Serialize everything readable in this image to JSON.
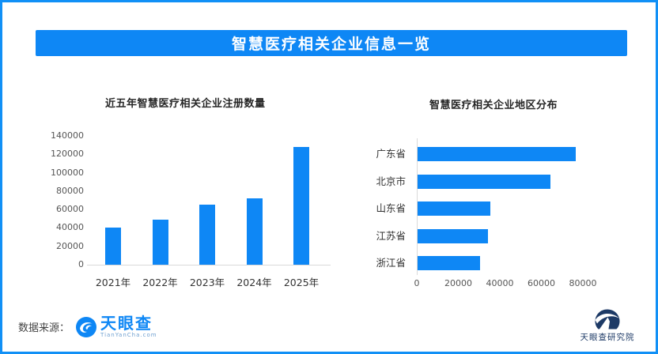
{
  "header": {
    "title": "智慧医疗相关企业信息一览"
  },
  "footer": {
    "source_label": "数据来源：",
    "tianyancha_name": "天眼查",
    "tianyancha_domain": "TianYanCha.com",
    "institute_name": "天眼查研究院"
  },
  "colors": {
    "accent_blue": "#0e87f5",
    "logo_navy": "#1d3a66",
    "axis_line": "#d9d9d9"
  },
  "chart_data": [
    {
      "type": "bar",
      "orientation": "vertical",
      "title": "近五年智慧医疗相关企业注册数量",
      "categories": [
        "2021年",
        "2022年",
        "2023年",
        "2024年",
        "2025年"
      ],
      "values": [
        40000,
        49000,
        65000,
        72000,
        128000
      ],
      "xlabel": "",
      "ylabel": "",
      "ylim": [
        0,
        140000
      ],
      "yticks": [
        0,
        20000,
        40000,
        60000,
        80000,
        100000,
        120000,
        140000
      ],
      "grid": false,
      "legend": false,
      "bar_color": "#0e87f5"
    },
    {
      "type": "bar",
      "orientation": "horizontal",
      "title": "智慧医疗相关企业地区分布",
      "categories": [
        "广东省",
        "北京市",
        "山东省",
        "江苏省",
        "浙江省"
      ],
      "values": [
        76000,
        64000,
        35000,
        34000,
        30000
      ],
      "xlabel": "",
      "ylabel": "",
      "xlim": [
        0,
        80000
      ],
      "xticks": [
        0,
        20000,
        40000,
        60000,
        80000
      ],
      "grid": false,
      "legend": false,
      "bar_color": "#0e87f5"
    }
  ]
}
